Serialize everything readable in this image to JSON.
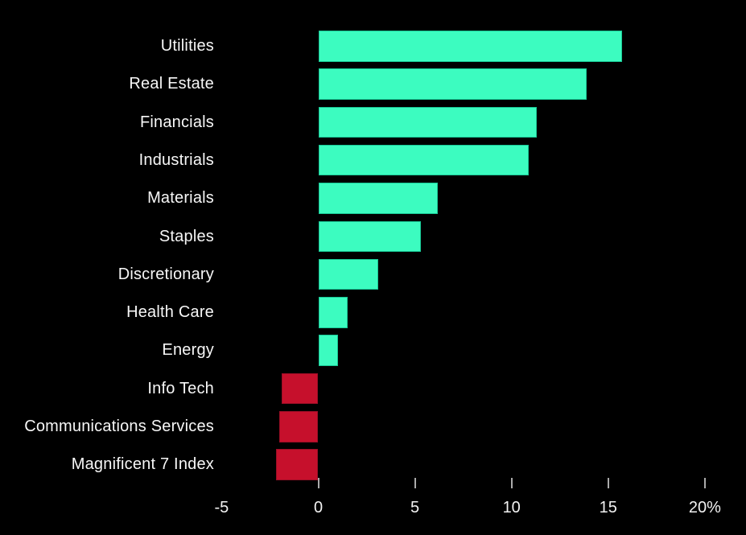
{
  "chart_data": {
    "type": "bar",
    "orientation": "horizontal",
    "title": "",
    "xlabel": "",
    "ylabel": "",
    "unit": "%",
    "grid": false,
    "legend": null,
    "xlim": [
      -5,
      20
    ],
    "categories": [
      "Utilities",
      "Real Estate",
      "Financials",
      "Industrials",
      "Materials",
      "Staples",
      "Discretionary",
      "Health Care",
      "Energy",
      "Info Tech",
      "Communications Services",
      "Magnificent 7 Index"
    ],
    "values": [
      15.7,
      13.9,
      11.3,
      10.9,
      6.2,
      5.3,
      3.1,
      1.5,
      1.0,
      -1.9,
      -2.0,
      -2.2
    ],
    "x_ticks": [
      0,
      5,
      10,
      15,
      20
    ],
    "x_axis_labels": [
      {
        "value": -5,
        "label": "-5"
      },
      {
        "value": 0,
        "label": "0"
      },
      {
        "value": 5,
        "label": "5"
      },
      {
        "value": 10,
        "label": "10"
      },
      {
        "value": 15,
        "label": "15"
      },
      {
        "value": 20,
        "label": "20%"
      }
    ],
    "colors": {
      "background": "#000000",
      "positive": "#3CFCC0",
      "positive_border": "#18C795",
      "negative": "#C6102C",
      "negative_border": "#9B0E26",
      "tick": "#ABABAB",
      "axis_text": "#F2F2F2",
      "category_text": "#F7F7F7"
    }
  }
}
